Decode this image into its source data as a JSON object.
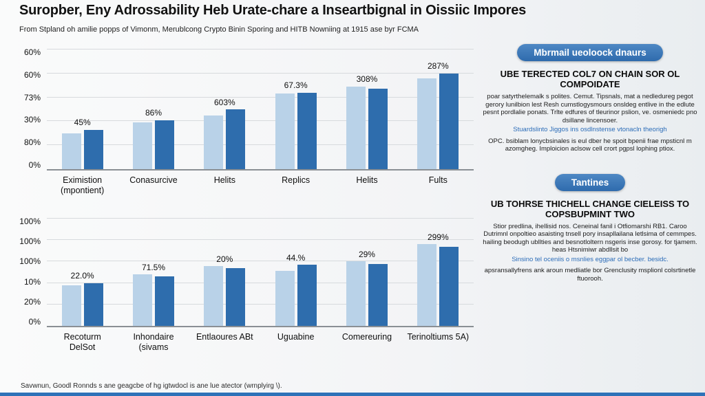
{
  "header": {
    "title": "Suropber, Eny Adrossability Heb Urate-chare a Inseartbignal in Oissiic Impores",
    "subtitle": "From Stpland oh amilie popps of Vimonm, Merublcong Crypto Binin Sporing and HITB Nowniing at 1915 ase byr FCMA"
  },
  "chart_data": [
    {
      "type": "bar",
      "title": "",
      "categories": [
        "Eximistion (mpontient)",
        "Conasurcive",
        "Helits",
        "Replics",
        "Helits",
        "Fults"
      ],
      "series": [
        {
          "name": "series-light-blue",
          "values": [
            30,
            39,
            45,
            63,
            69,
            76
          ]
        },
        {
          "name": "series-dark-blue",
          "values": [
            33,
            41,
            50,
            64,
            67,
            80
          ]
        }
      ],
      "value_labels": [
        "45%",
        "86%",
        "603%",
        "67.3%",
        "308%",
        "287%"
      ],
      "y_ticks": [
        "60%",
        "60%",
        "73%",
        "30%",
        "80%",
        "0%"
      ],
      "ylim": [
        0,
        100
      ],
      "grid": true,
      "legend": "none",
      "note": "values are bar heights as percent of plot height, read from pixels; axis tick text is as printed"
    },
    {
      "type": "bar",
      "title": "",
      "categories": [
        "Recoturm DelSot",
        "Inhondaire (sivams",
        "Entlaoures ABt",
        "Uguabine",
        "Comereuring",
        "Terinoltiums 5A)"
      ],
      "series": [
        {
          "name": "series-light-blue",
          "values": [
            38,
            48,
            56,
            51,
            60,
            76
          ]
        },
        {
          "name": "series-dark-blue",
          "values": [
            40,
            46,
            54,
            57,
            58,
            74
          ]
        }
      ],
      "value_labels": [
        "22.0%",
        "71.5%",
        "20%",
        "44.%",
        "29%",
        "299%"
      ],
      "y_ticks": [
        "100%",
        "100%",
        "100%",
        "10%",
        "20%",
        "0%"
      ],
      "ylim": [
        0,
        100
      ],
      "grid": true,
      "legend": "none",
      "note": "values are bar heights as percent of plot height, read from pixels; axis tick text is as printed"
    }
  ],
  "right": {
    "section1": {
      "pill": "Mbrmail ueoloock dnaurs",
      "heading": "UBE TERECTED COL7 ON CHAIN SOR OL COMPOIDATE",
      "body1": "poar satyrthelemalk s polites. Cemut. Tipsnals, mat a nedledureg pegot gerory lunilbion lest Resh cumstlogysmours onsldeg entlive in the edlute pesnt pordlalie ponats. Trlte edfures of tleurinor pslion, ve. osmeniedc pno dsillane lincensoer.",
      "link": "Stuardslinto Jiggos ins osdlnstense vtonacln theorigh",
      "body2": "OPC. bsiblam lonycbsinales is eul dber he spoit bpenii frae mpsticnl m azomgheg. Imploicion aclsow cell crort pgpsl lophing ptiox."
    },
    "section2": {
      "pill": "Tantines",
      "heading": "UB TOHRSE THICHELL CHANGE CIELEISS TO COPSBUPMINT TWO",
      "body1": "Stior predlina, ihellisid nos. Ceneinal fanil i Otfiomarshi RB1. Caroo Dutrimnl onpoltieo asaisting tnsell pory insapllailana letlsima of cemmpes. hailing beodugh ubllties and besnotloltern nsgeris inse gorosy. for tjamem. heas Htsnimiwr abdllsit bo",
      "link": "Sinsino tel oceniis o msnlies eggpar ol becber. besidc.",
      "body2": "apsransallyfrens ank aroun medliatle bor Grenclusity msplionl colsrtinetle ftuorooh."
    }
  },
  "footnote": "Savwnun, Goodl Ronnds s ane geagcbe of hg igtwdocl is ane lue atector (wrnplyirg \\).",
  "colors": {
    "bar_light": "#b9d2e8",
    "bar_dark": "#2e6dad",
    "accent": "#2e72b8",
    "link": "#2b6cb8"
  }
}
